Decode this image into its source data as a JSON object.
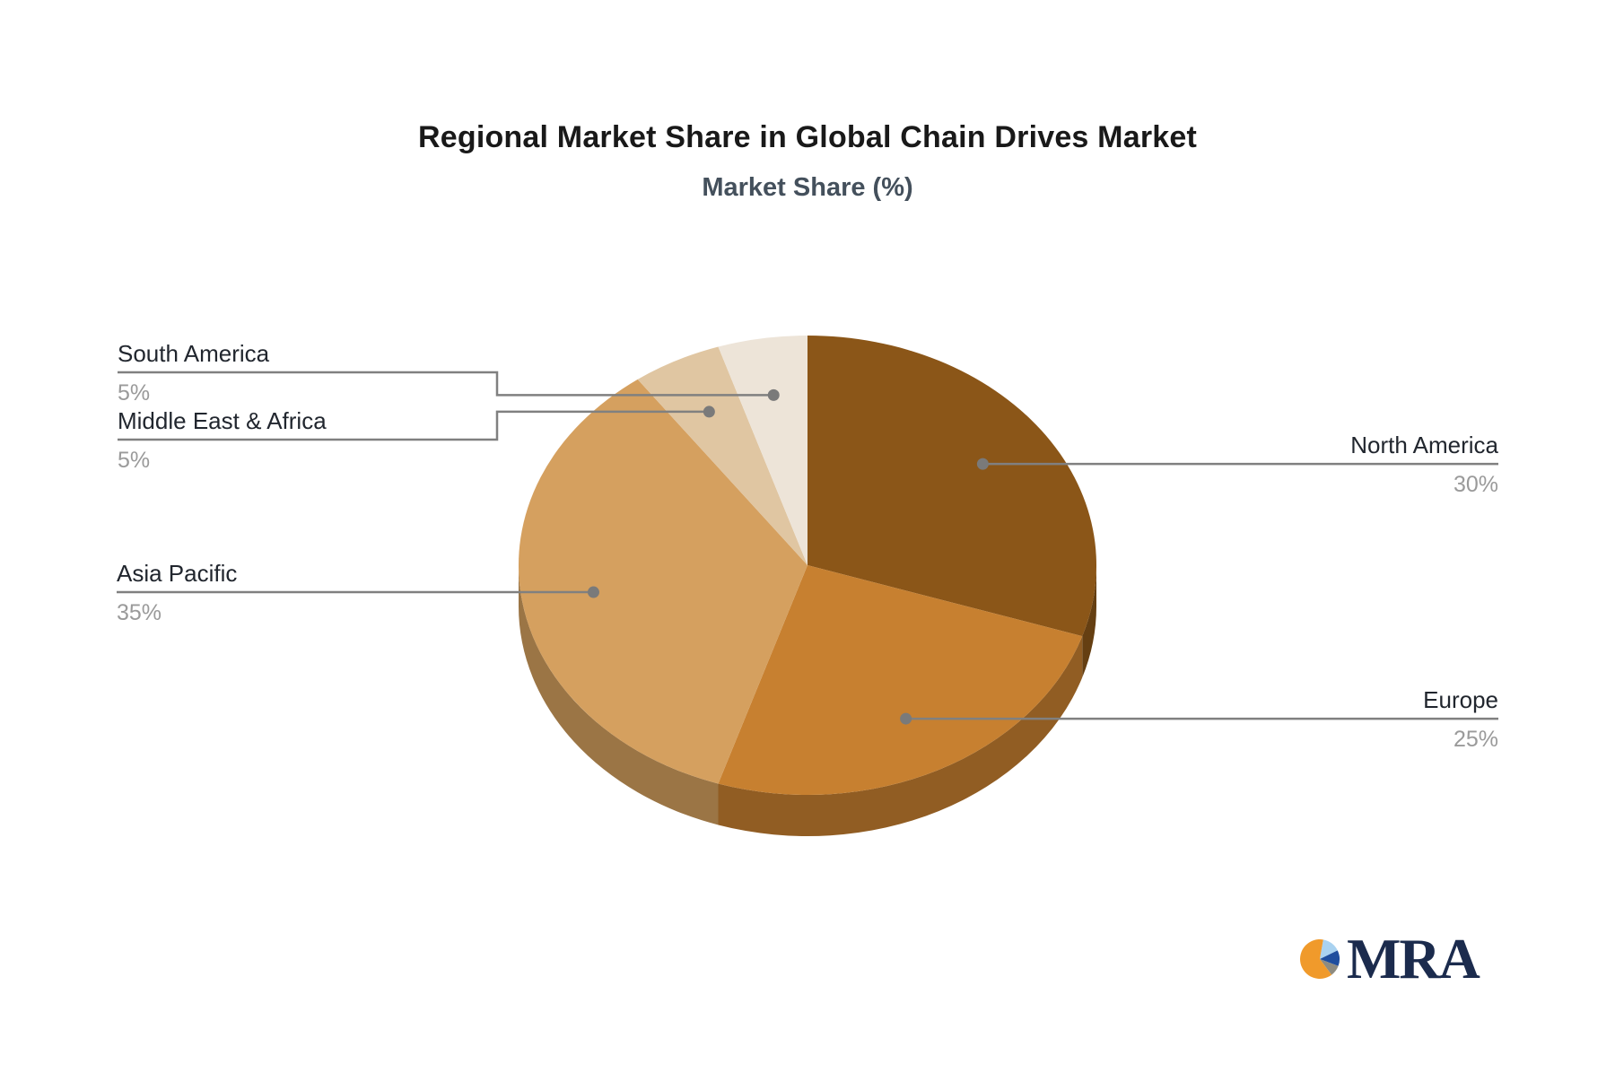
{
  "title": "Regional Market Share in Global Chain Drives Market",
  "subtitle": "Market Share (%)",
  "chart_data": {
    "type": "pie",
    "style": "3d",
    "unit": "%",
    "title": "Regional Market Share in Global Chain Drives Market",
    "subtitle": "Market Share (%)",
    "legend": "none",
    "direction": "clockwise",
    "start_angle_deg": 0,
    "slices": [
      {
        "label": "North America",
        "value": 30,
        "pct_label": "30%",
        "color": "#8B5618"
      },
      {
        "label": "Europe",
        "value": 25,
        "pct_label": "25%",
        "color": "#C78030"
      },
      {
        "label": "Asia Pacific",
        "value": 35,
        "pct_label": "35%",
        "color": "#D5A05F"
      },
      {
        "label": "Middle East & Africa",
        "value": 5,
        "pct_label": "5%",
        "color": "#E0C6A2"
      },
      {
        "label": "South America",
        "value": 5,
        "pct_label": "5%",
        "color": "#EDE4D8"
      }
    ],
    "leader_line_color": "#808080",
    "dot_color": "#7a7a7a",
    "label_color": "#21262e",
    "value_color": "#9a9a9a"
  },
  "logo": {
    "text": "MRA",
    "text_color": "#1b2b4d",
    "icon": "pie-chart-icon",
    "icon_slices": [
      {
        "color": "#A9D2F0",
        "value": 15
      },
      {
        "color": "#1F4E9E",
        "value": 13
      },
      {
        "color": "#8E8B80",
        "value": 9
      },
      {
        "color": "#F09A2B",
        "value": 63
      }
    ]
  }
}
